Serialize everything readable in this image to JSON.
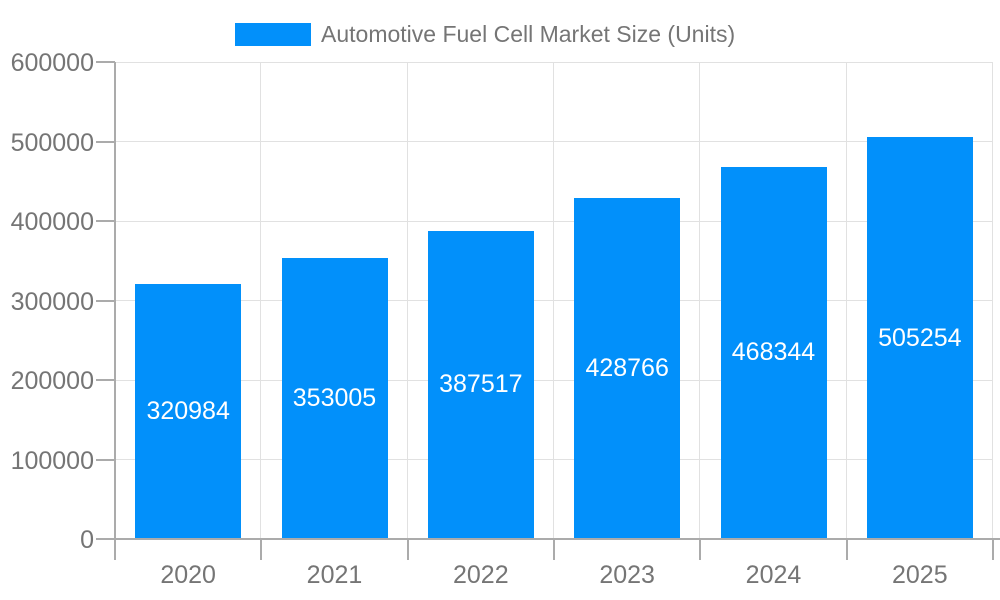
{
  "chart_data": {
    "type": "bar",
    "title": "Automotive Fuel Cell Market Size (Units)",
    "categories": [
      "2020",
      "2021",
      "2022",
      "2023",
      "2024",
      "2025"
    ],
    "values": [
      320984,
      353005,
      387517,
      428766,
      468344,
      505254
    ],
    "bar_value_labels": [
      "320984",
      "353005",
      "387517",
      "428766",
      "468344",
      "505254"
    ],
    "xlabel": "",
    "ylabel": "",
    "ylim": [
      0,
      600000
    ],
    "y_ticks": [
      {
        "value": 0,
        "label": "0"
      },
      {
        "value": 100000,
        "label": "100000"
      },
      {
        "value": 200000,
        "label": "200000"
      },
      {
        "value": 300000,
        "label": "300000"
      },
      {
        "value": 400000,
        "label": "400000"
      },
      {
        "value": 500000,
        "label": "500000"
      },
      {
        "value": 600000,
        "label": "600000"
      }
    ],
    "grid": true,
    "legend_position": "top",
    "colors": {
      "bar": "#0290FA",
      "bar_label": "#FFFFFF",
      "grid": "#E1E1E1",
      "axis": "#ABABAB",
      "tick_text": "#757575",
      "legend_text": "#757575",
      "background": "#FFFFFF"
    }
  }
}
